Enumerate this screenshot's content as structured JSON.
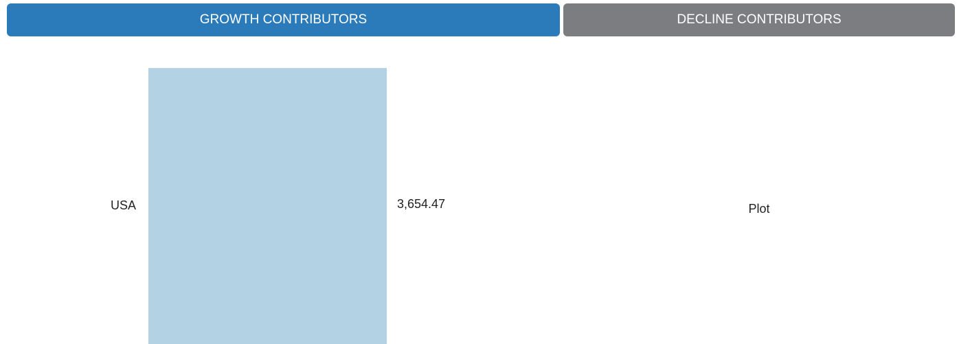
{
  "tabs": [
    {
      "label": "GROWTH CONTRIBUTORS",
      "color": "#2b7bba"
    },
    {
      "label": "DECLINE CONTRIBUTORS",
      "color": "#7b7d80"
    }
  ],
  "chart_data": {
    "type": "bar",
    "orientation": "horizontal",
    "categories": [
      "USA"
    ],
    "values": [
      3654.47
    ],
    "value_labels": [
      "3,654.47"
    ],
    "color": "#b3d3e5"
  },
  "right_panel": {
    "text": "Plot"
  }
}
